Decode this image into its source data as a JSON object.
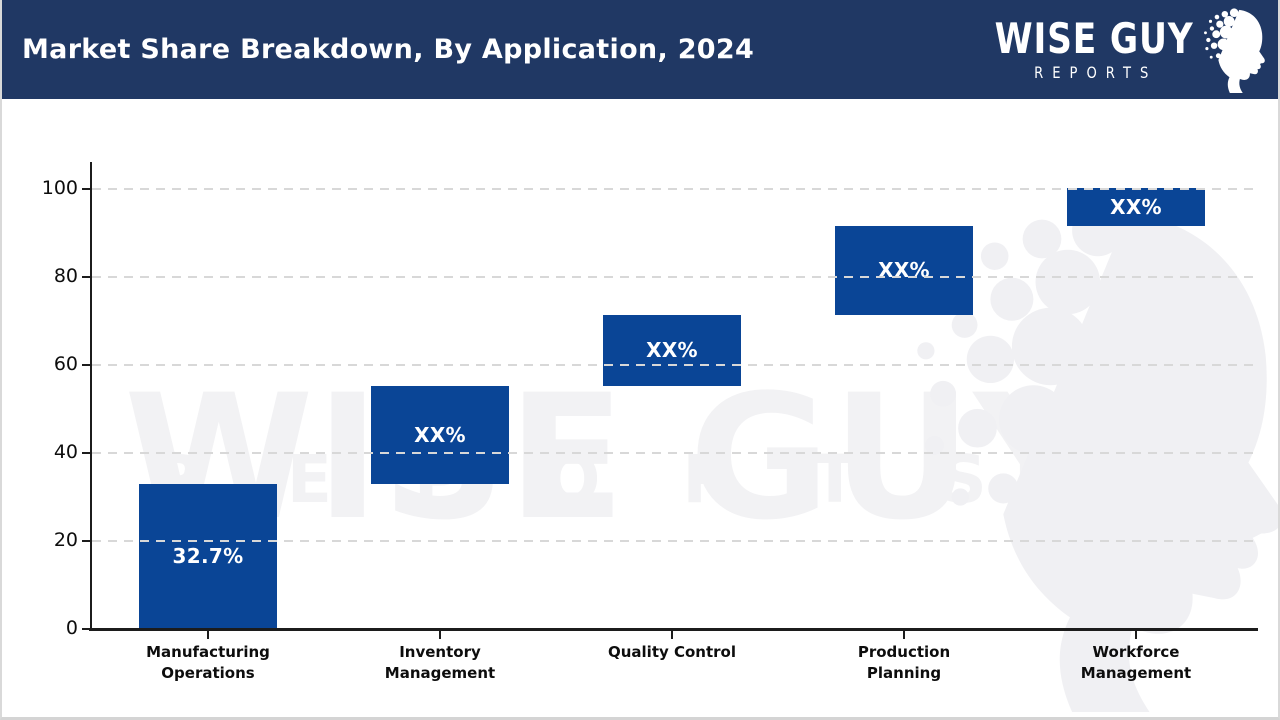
{
  "header": {
    "title": "Market Share Breakdown, By Application, 2024",
    "logo": {
      "line1": "WISE GUY",
      "line2": "REPORTS"
    }
  },
  "watermark": {
    "line1": "WISE GUY",
    "line2": "REPORTS"
  },
  "colors": {
    "header_bg": "#203864",
    "bar": "#0a4596",
    "gridline": "#d8d8d8",
    "axis": "#1c1c1c",
    "bar_label_text": "#ffffff",
    "watermark_text": "#f2f2f4"
  },
  "chart_data": {
    "type": "bar",
    "variant": "waterfall",
    "title": "Market Share Breakdown, By Application, 2024",
    "categories": [
      "Manufacturing Operations",
      "Inventory Management",
      "Quality Control",
      "Production Planning",
      "Workforce Management"
    ],
    "bars": [
      {
        "category": "Manufacturing Operations",
        "start": 0,
        "end": 32.7,
        "label": "32.7%"
      },
      {
        "category": "Inventory Management",
        "start": 32.7,
        "end": 55.1,
        "label": "XX%"
      },
      {
        "category": "Quality Control",
        "start": 55.1,
        "end": 71.1,
        "label": "XX%"
      },
      {
        "category": "Production Planning",
        "start": 71.1,
        "end": 91.4,
        "label": "XX%"
      },
      {
        "category": "Workforce Management",
        "start": 91.4,
        "end": 100,
        "label": "XX%"
      }
    ],
    "xlabel": "",
    "ylabel": "",
    "ylim": [
      0,
      100
    ],
    "yticks": [
      0,
      20,
      40,
      60,
      80,
      100
    ],
    "grid": {
      "axis": "y",
      "style": "dashed",
      "over_bars": true
    },
    "legend": "none",
    "bar_color": "#0a4596"
  }
}
